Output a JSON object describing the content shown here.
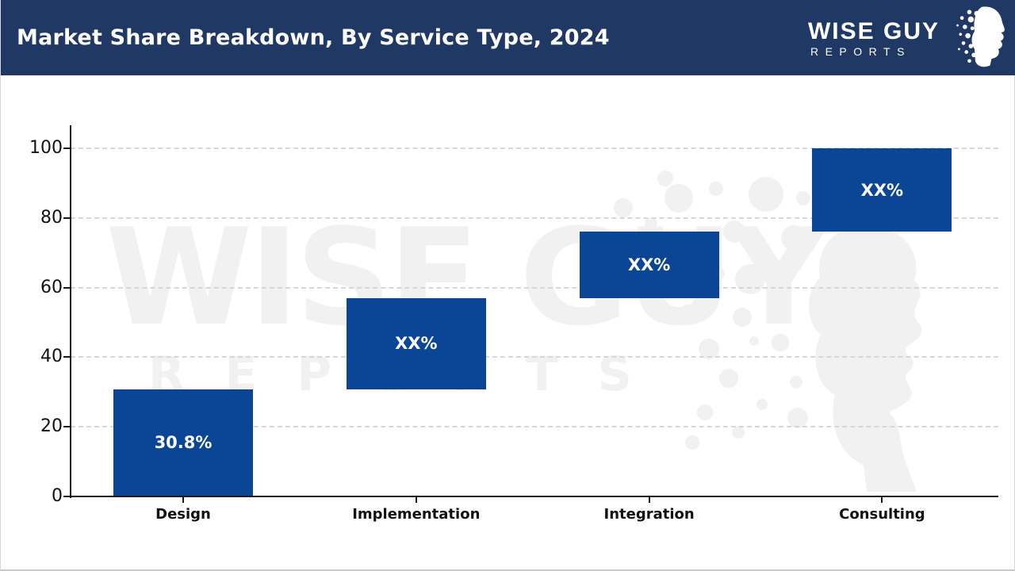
{
  "header": {
    "title": "Market Share Breakdown, By Service Type, 2024",
    "logo": {
      "line1": "WISE GUY",
      "line2": "REPORTS"
    }
  },
  "watermark": {
    "line1": "WISE GUY",
    "line2": "REPORTS"
  },
  "colors": {
    "header_bg": "#1f3864",
    "bar": "#0b4596",
    "bar_label": "#ffffff",
    "grid": "#d7d7d7",
    "axis": "#1a1a1a",
    "watermark": "#f1f1f2",
    "background": "#ffffff"
  },
  "chart_data": {
    "type": "bar",
    "variant": "waterfall",
    "title": "Market Share Breakdown, By Service Type, 2024",
    "categories": [
      "Design",
      "Implementation",
      "Integration",
      "Consulting"
    ],
    "segments": [
      {
        "category": "Design",
        "start": 0,
        "end": 30.8,
        "label": "30.8%"
      },
      {
        "category": "Implementation",
        "start": 30.8,
        "end": 57,
        "label": "XX%"
      },
      {
        "category": "Integration",
        "start": 57,
        "end": 76,
        "label": "XX%"
      },
      {
        "category": "Consulting",
        "start": 76,
        "end": 100,
        "label": "XX%"
      }
    ],
    "ylim": [
      0,
      100
    ],
    "yticks": [
      0,
      20,
      40,
      60,
      80,
      100
    ],
    "xlabel": "",
    "ylabel": "",
    "grid": "horizontal-dashed",
    "legend": "none",
    "bar_color": "#0b4596",
    "bar_label_color": "#ffffff"
  }
}
